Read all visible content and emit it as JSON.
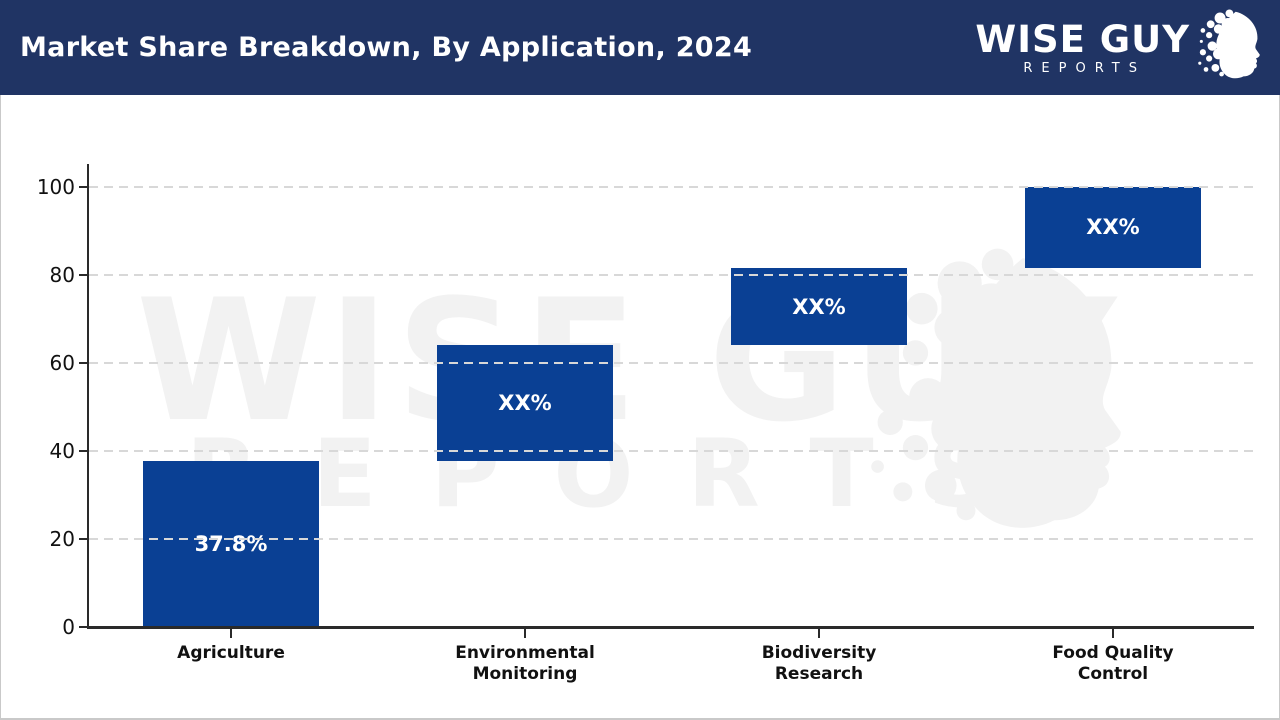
{
  "header": {
    "title": "Market Share Breakdown, By Application, 2024",
    "bg_color": "#203464",
    "logo": {
      "brand_top": "WISE GUY",
      "brand_bottom": "REPORTS",
      "head_icon": "dotted-face-profile"
    }
  },
  "watermark": {
    "line1": "WISE GUY",
    "line2": "REPORTS",
    "color": "#f2f2f2"
  },
  "chart_data": {
    "type": "bar",
    "subtype": "waterfall",
    "title": "Market Share Breakdown, By Application, 2024",
    "categories": [
      "Agriculture",
      "Environmental Monitoring",
      "Biodiversity Research",
      "Food Quality Control"
    ],
    "category_lines": [
      [
        "Agriculture"
      ],
      [
        "Environmental",
        "Monitoring"
      ],
      [
        "Biodiversity",
        "Research"
      ],
      [
        "Food Quality",
        "Control"
      ]
    ],
    "segments": [
      {
        "category": "Agriculture",
        "start": 0,
        "end": 37.8,
        "label": "37.8%"
      },
      {
        "category": "Environmental Monitoring",
        "start": 37.8,
        "end": 64,
        "label": "XX%"
      },
      {
        "category": "Biodiversity Research",
        "start": 64,
        "end": 81.6,
        "label": "XX%"
      },
      {
        "category": "Food Quality Control",
        "start": 81.6,
        "end": 100,
        "label": "XX%"
      }
    ],
    "ylim": [
      0,
      100
    ],
    "yticks": [
      0,
      20,
      40,
      60,
      80,
      100
    ],
    "xlabel": "",
    "ylabel": "",
    "grid": "horizontal-dashed-drawn-over-bars",
    "legend": "none",
    "bar_color": "#0a4094",
    "bar_label_color": "#ffffff",
    "axis_color": "#2a2a2a",
    "grid_color": "#d8d8d8",
    "tick_label_color": "#111111"
  }
}
